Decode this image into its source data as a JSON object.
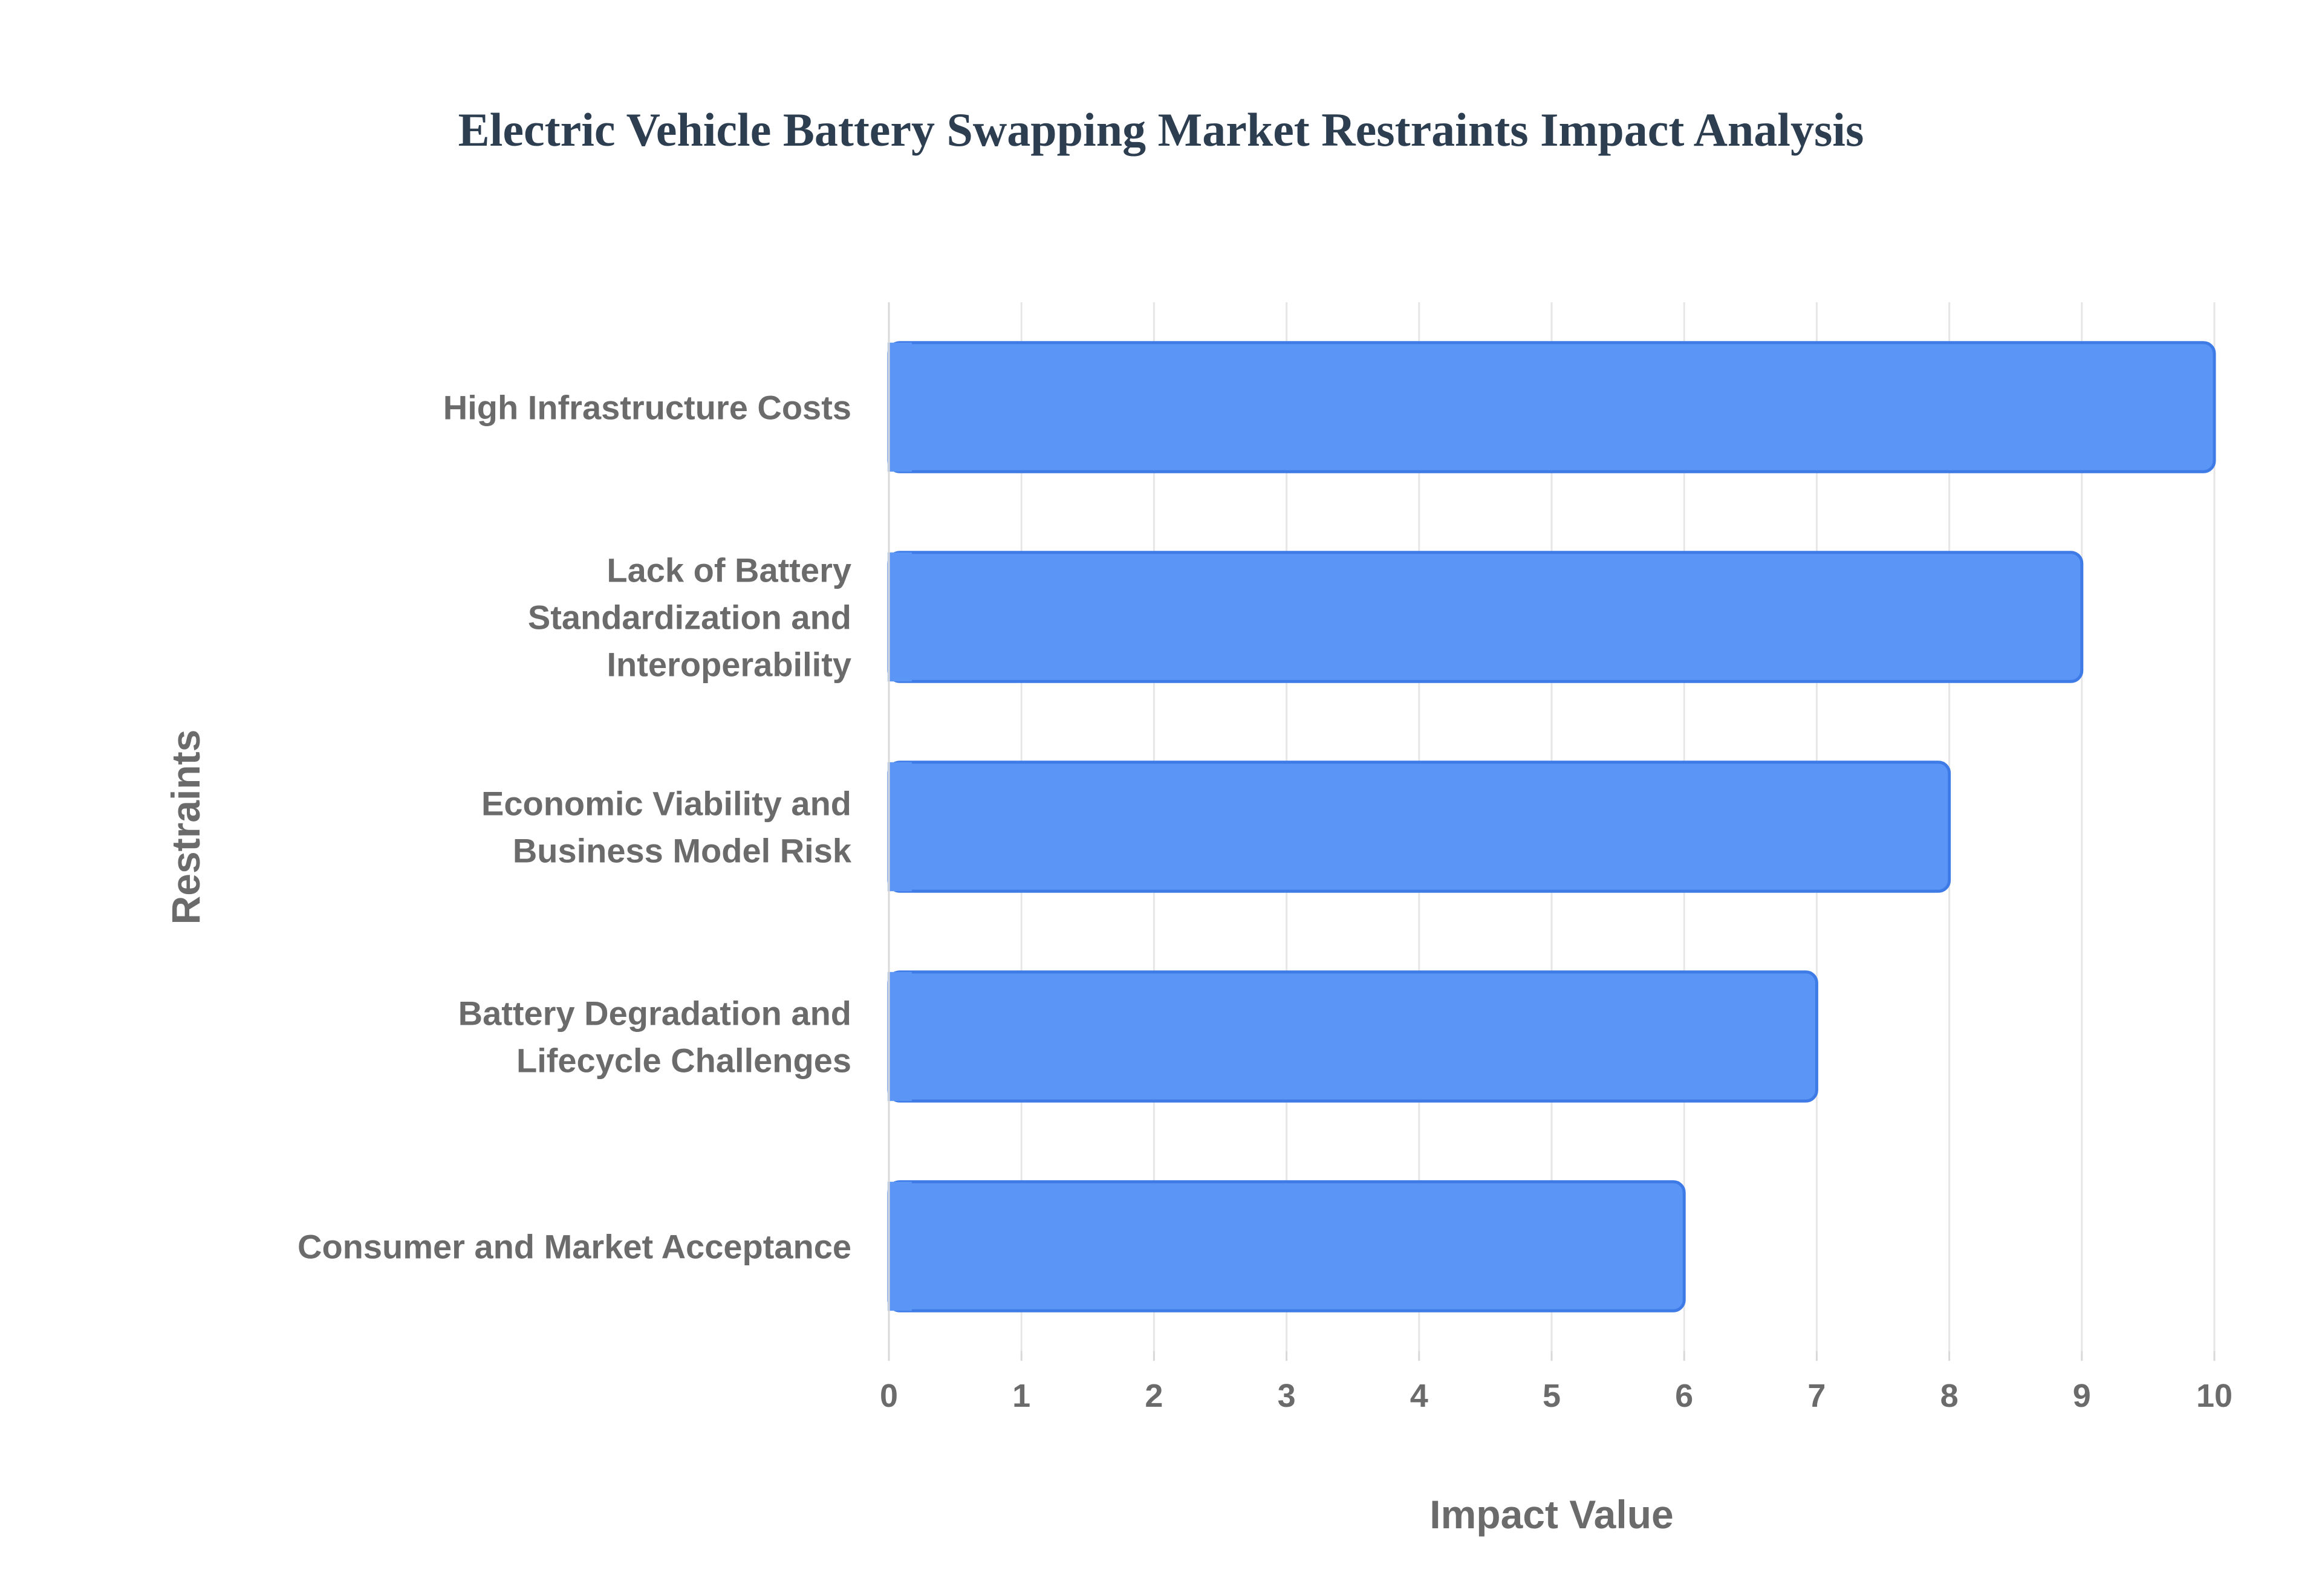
{
  "chart_data": {
    "type": "bar",
    "orientation": "horizontal",
    "title": "Electric Vehicle Battery Swapping Market Restraints Impact Analysis",
    "xlabel": "Impact Value",
    "ylabel": "Restraints",
    "xlim": [
      0,
      10
    ],
    "xticks": [
      "0",
      "1",
      "2",
      "3",
      "4",
      "5",
      "6",
      "7",
      "8",
      "9",
      "10"
    ],
    "grid": true,
    "categories": [
      [
        "High Infrastructure Costs"
      ],
      [
        "Lack of Battery",
        "Standardization and",
        "Interoperability"
      ],
      [
        "Economic Viability and",
        "Business Model Risk"
      ],
      [
        "Battery Degradation and",
        "Lifecycle Challenges"
      ],
      [
        "Consumer and Market Acceptance"
      ]
    ],
    "values": [
      10,
      9,
      8,
      7,
      6
    ],
    "bar_color": "#5b95f5",
    "bar_edge_color": "#3f7be6"
  }
}
